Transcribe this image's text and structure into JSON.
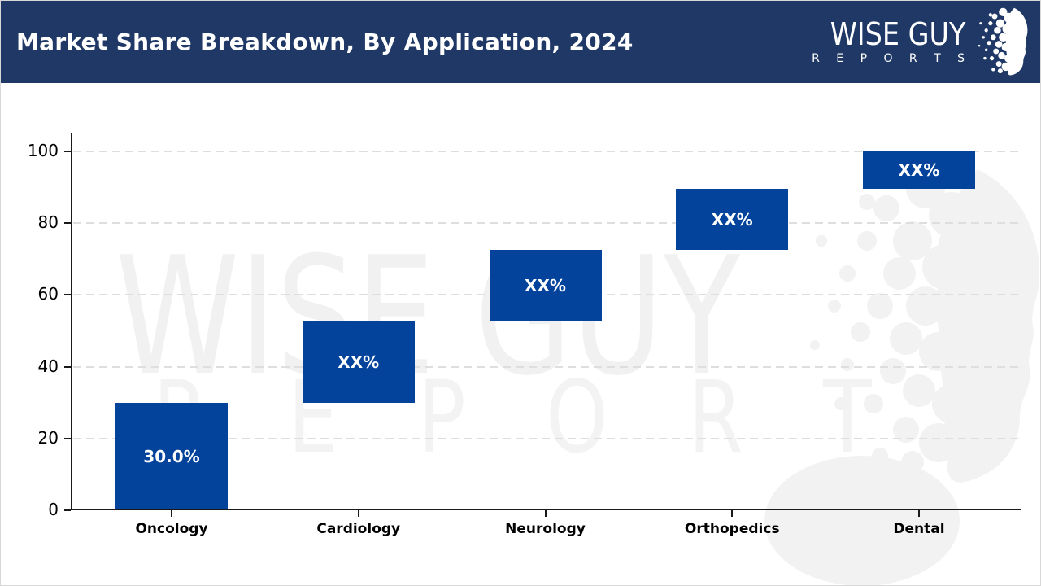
{
  "header": {
    "title": "Market Share Breakdown, By Application, 2024",
    "logo": {
      "primary": "WISE GUY",
      "secondary": "R E P O R T S"
    }
  },
  "watermark": {
    "line1": "WISE GUY",
    "line2": "R E P O R T S"
  },
  "chart_data": {
    "type": "bar",
    "subtype": "waterfall",
    "title": "Market Share Breakdown, By Application, 2024",
    "categories": [
      "Oncology",
      "Cardiology",
      "Neurology",
      "Orthopedics",
      "Dental"
    ],
    "segments": [
      {
        "category": "Oncology",
        "start": 0,
        "end": 30,
        "label": "30.0%"
      },
      {
        "category": "Cardiology",
        "start": 30,
        "end": 52.5,
        "label": "XX%"
      },
      {
        "category": "Neurology",
        "start": 52.5,
        "end": 72.5,
        "label": "XX%"
      },
      {
        "category": "Orthopedics",
        "start": 72.5,
        "end": 89.5,
        "label": "XX%"
      },
      {
        "category": "Dental",
        "start": 89.5,
        "end": 100,
        "label": "XX%"
      }
    ],
    "yticks": [
      0,
      20,
      40,
      60,
      80,
      100
    ],
    "ylim": [
      0,
      105
    ],
    "xlabel": "",
    "ylabel": "",
    "legend": "none",
    "grid": "horizontal-dashed",
    "bar_color": "#04439B",
    "bar_label_color": "#FFFFFF"
  },
  "colors": {
    "header_bg": "#1F3866",
    "bar": "#04439B",
    "grid": "#DEDEDE",
    "axis": "#1A1A1A",
    "title_text": "#FFFFFF",
    "watermark": "#F1F1F1"
  }
}
